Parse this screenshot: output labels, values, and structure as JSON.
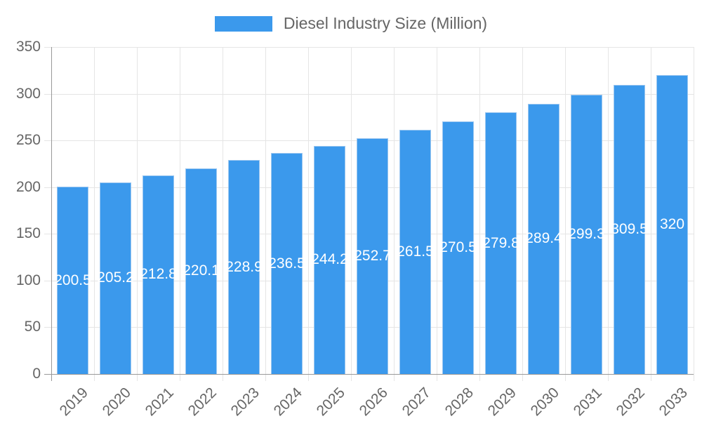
{
  "chart_data": {
    "type": "bar",
    "title": "Diesel Industry Size (Million)",
    "legend": {
      "label": "Diesel Industry Size (Million)",
      "position": "top"
    },
    "categories": [
      "2019",
      "2020",
      "2021",
      "2022",
      "2023",
      "2024",
      "2025",
      "2026",
      "2027",
      "2028",
      "2029",
      "2030",
      "2031",
      "2032",
      "2033"
    ],
    "values": [
      200.5,
      205.2,
      212.8,
      220.1,
      228.9,
      236.5,
      244.2,
      252.7,
      261.5,
      270.5,
      279.8,
      289.4,
      299.3,
      309.5,
      320
    ],
    "value_labels": [
      "200.5",
      "205.2",
      "212.8",
      "220.1",
      "228.9",
      "236.5",
      "244.2",
      "252.7",
      "261.5",
      "270.5",
      "279.8",
      "289.4",
      "299.3",
      "309.5",
      "320"
    ],
    "xlabel": "",
    "ylabel": "",
    "ylim": [
      0,
      350
    ],
    "y_ticks": [
      0,
      50,
      100,
      150,
      200,
      250,
      300,
      350
    ],
    "grid": true,
    "colors": {
      "bar": "#3b99ec",
      "bar_border": "#9cc7f0",
      "grid": "#e5e5e5",
      "axis": "#999999",
      "text": "#666666",
      "value_label": "#ffffff"
    }
  }
}
